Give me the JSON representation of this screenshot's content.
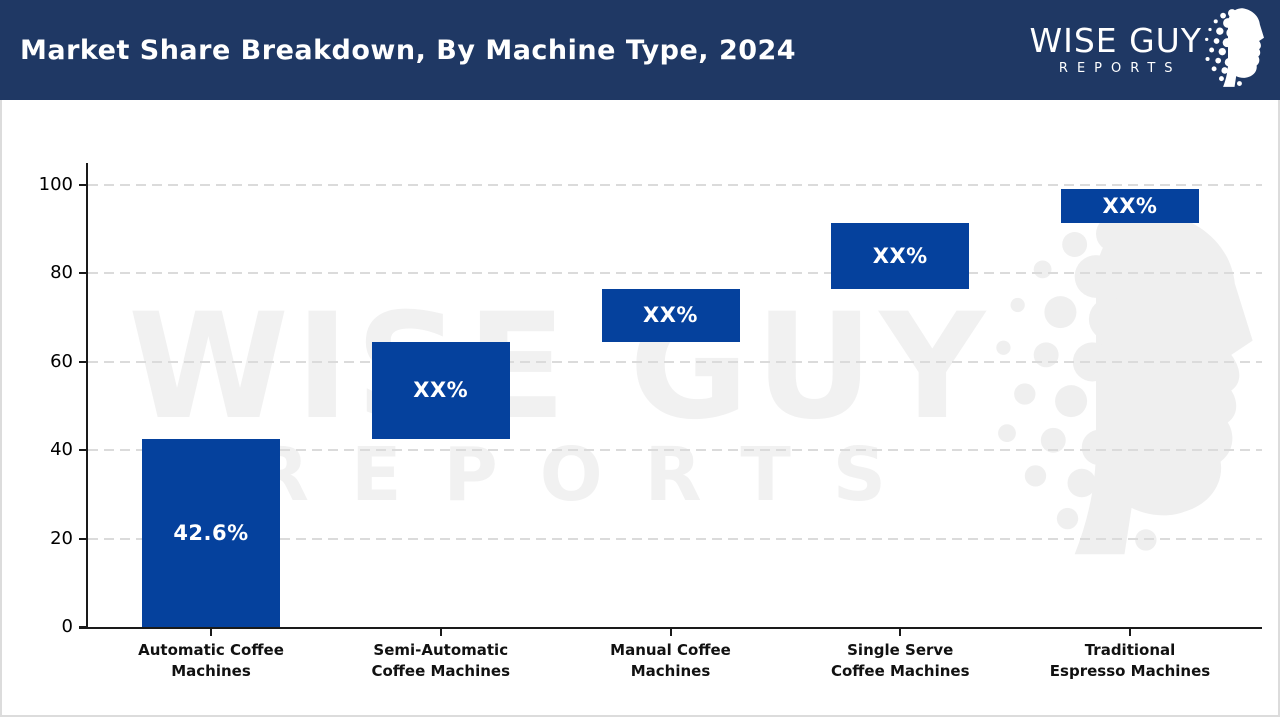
{
  "header": {
    "title": "Market Share Breakdown, By Machine Type, 2024",
    "bg_color": "#1f3864",
    "brand": {
      "line1": "WISE GUY",
      "line2": "REPORTS"
    }
  },
  "watermark": {
    "line1": "WISE GUY",
    "line2": "REPORTS"
  },
  "chart_data": {
    "type": "bar",
    "variant": "waterfall",
    "title": "Market Share Breakdown, By Machine Type, 2024",
    "categories": [
      "Automatic Coffee Machines",
      "Semi-Automatic Coffee Machines",
      "Manual Coffee Machines",
      "Single Serve Coffee Machines",
      "Traditional Espresso Machines"
    ],
    "category_lines": [
      [
        "Automatic Coffee",
        "Machines"
      ],
      [
        "Semi-Automatic",
        "Coffee Machines"
      ],
      [
        "Manual Coffee",
        "Machines"
      ],
      [
        "Single Serve",
        "Coffee Machines"
      ],
      [
        "Traditional",
        "Espresso Machines"
      ]
    ],
    "bars": [
      {
        "start": 0,
        "end": 42.6,
        "label": "42.6%"
      },
      {
        "start": 42.6,
        "end": 64.5,
        "label": "XX%"
      },
      {
        "start": 64.5,
        "end": 76.5,
        "label": "XX%"
      },
      {
        "start": 76.5,
        "end": 91.3,
        "label": "XX%"
      },
      {
        "start": 91.3,
        "end": 99.0,
        "label": "XX%"
      }
    ],
    "yticks": [
      0,
      20,
      40,
      60,
      80,
      100
    ],
    "ylim": [
      0,
      105
    ],
    "xlabel": "",
    "ylabel": "",
    "bar_color": "#05419d",
    "grid": "dashed-horizontal",
    "legend": "none"
  }
}
